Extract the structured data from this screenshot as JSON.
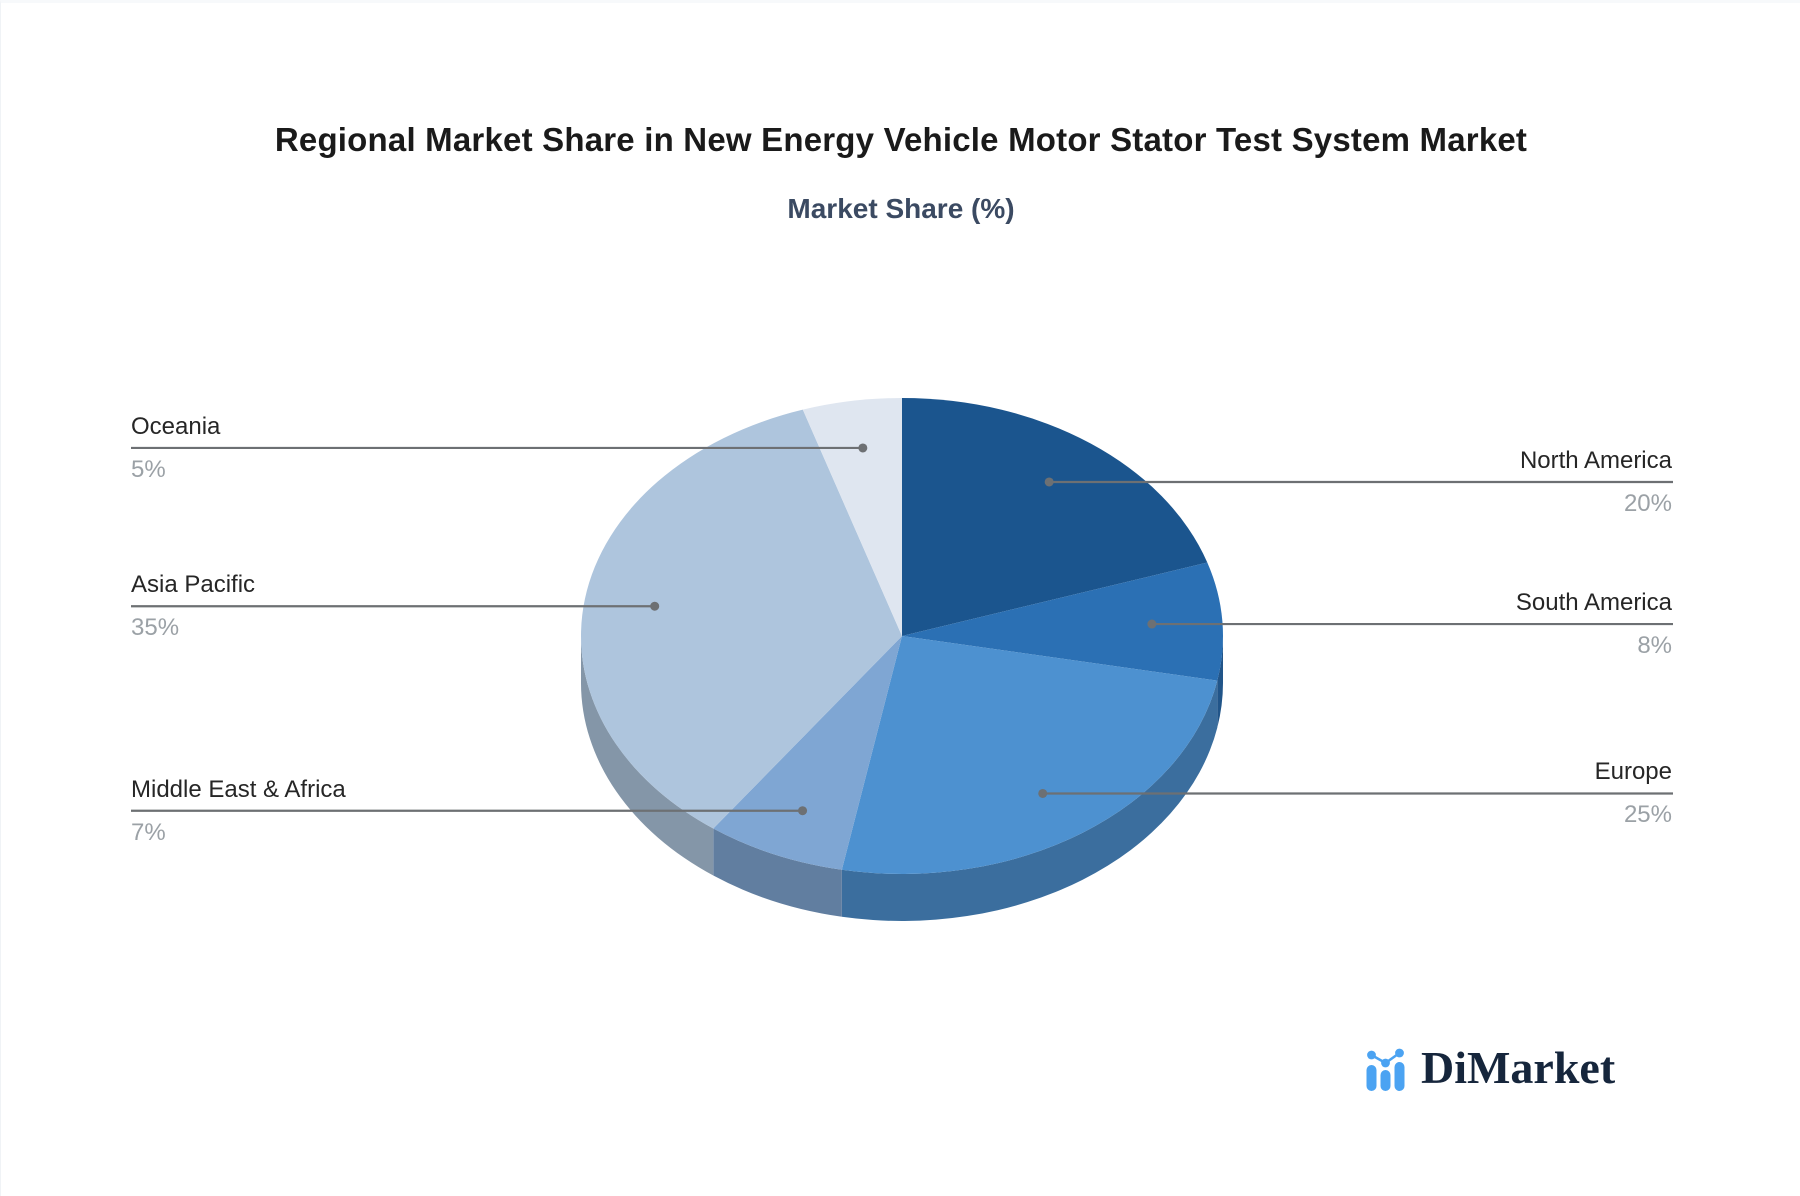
{
  "title": "Regional Market Share in New Energy Vehicle Motor Stator Test System Market",
  "subtitle": "Market Share (%)",
  "logo": {
    "text": "DiMarket"
  },
  "colors": {
    "background": "#ffffff",
    "leader_line": "#6d7073",
    "label_text": "#262626",
    "pct_text": "#9ba1a6",
    "title_text": "#1a1a1a",
    "subtitle_text": "#3b4a62",
    "logo_text": "#16263c",
    "logo_icon": "#4ba3f2"
  },
  "chart_data": {
    "type": "pie",
    "title": "Regional Market Share in New Energy Vehicle Motor Stator Test System Market",
    "subtitle": "Market Share (%)",
    "unit": "%",
    "style": "3d-pie with callout leader lines, no legend",
    "start_angle_deg": -90,
    "direction": "clockwise",
    "slices": [
      {
        "label": "North America",
        "value": 20,
        "pct_label": "20%",
        "color": "#1b558e",
        "label_side": "right"
      },
      {
        "label": "South America",
        "value": 8,
        "pct_label": "8%",
        "color": "#2b70b4",
        "label_side": "right"
      },
      {
        "label": "Europe",
        "value": 25,
        "pct_label": "25%",
        "color": "#4d91d0",
        "label_side": "right"
      },
      {
        "label": "Middle East & Africa",
        "value": 7,
        "pct_label": "7%",
        "color": "#7fa6d3",
        "label_side": "left"
      },
      {
        "label": "Asia Pacific",
        "value": 35,
        "pct_label": "35%",
        "color": "#aec5dd",
        "label_side": "left"
      },
      {
        "label": "Oceania",
        "value": 5,
        "pct_label": "5%",
        "color": "#dfe6f0",
        "label_side": "left"
      }
    ]
  }
}
